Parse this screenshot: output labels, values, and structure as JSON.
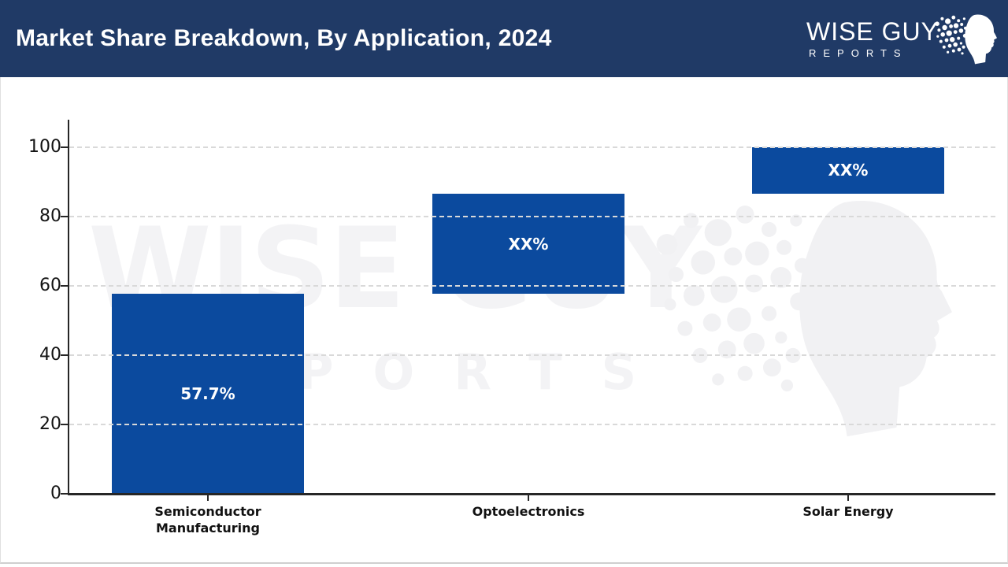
{
  "header": {
    "title": "Market Share Breakdown, By Application, 2024",
    "logo": {
      "line1": "WISE GUY",
      "line2": "REPORTS"
    }
  },
  "watermark": {
    "line1": "WISE GUY",
    "line2": "REPORTS"
  },
  "chart_data": {
    "type": "bar",
    "subtype": "stacked-waterfall-breakdown",
    "title": "Market Share Breakdown, By Application, 2024",
    "categories": [
      "Semiconductor Manufacturing",
      "Optoelectronics",
      "Solar Energy"
    ],
    "segments": [
      {
        "category": "Semiconductor Manufacturing",
        "start": 0,
        "end": 57.7,
        "label": "57.7%"
      },
      {
        "category": "Optoelectronics",
        "start": 57.7,
        "end": 86.6,
        "label": "XX%"
      },
      {
        "category": "Solar Energy",
        "start": 86.6,
        "end": 100,
        "label": "XX%"
      }
    ],
    "ylabel": "",
    "xlabel": "",
    "ylim": [
      0,
      100
    ],
    "yticks": [
      0,
      20,
      40,
      60,
      80,
      100
    ],
    "grid": "horizontal-dashed",
    "grid_color": "#d9d9d9",
    "bar_color": "#0b4a9e",
    "bar_label_color": "#ffffff"
  }
}
